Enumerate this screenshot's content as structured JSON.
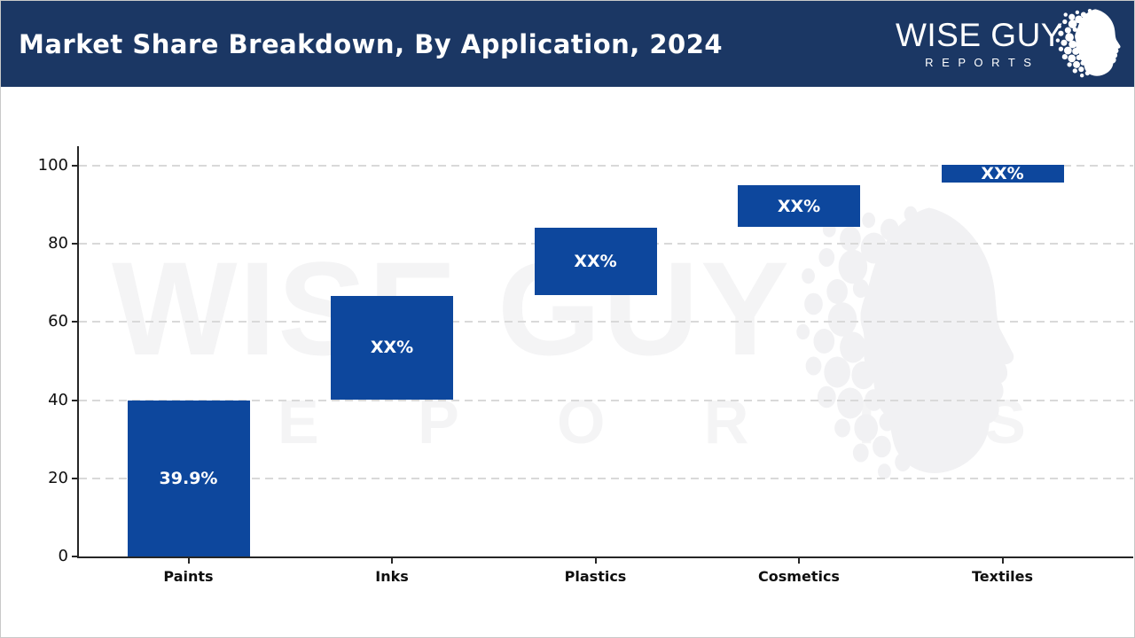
{
  "header": {
    "title": "Market Share Breakdown, By Application, 2024",
    "logo": {
      "brand": "WISE GUY",
      "sub": "R E P O R T S"
    }
  },
  "watermark": {
    "brand": "WISE GUY",
    "sub": "R E P O R T S"
  },
  "chart_data": {
    "type": "bar",
    "subtype": "waterfall",
    "title": "Market Share Breakdown, By Application, 2024",
    "categories": [
      "Paints",
      "Inks",
      "Plastics",
      "Cosmetics",
      "Textiles"
    ],
    "segments": [
      {
        "category": "Paints",
        "start": 0,
        "end": 39.9,
        "label": "39.9%"
      },
      {
        "category": "Inks",
        "start": 40.2,
        "end": 66.7,
        "label": "XX%"
      },
      {
        "category": "Plastics",
        "start": 66.9,
        "end": 84.2,
        "label": "XX%"
      },
      {
        "category": "Cosmetics",
        "start": 84.4,
        "end": 94.9,
        "label": "XX%"
      },
      {
        "category": "Textiles",
        "start": 95.6,
        "end": 100.3,
        "label": "XX%"
      }
    ],
    "xlabel": "",
    "ylabel": "",
    "ylim": [
      0,
      100
    ],
    "yticks": [
      0,
      20,
      40,
      60,
      80,
      100
    ],
    "grid": "horizontal-dashed",
    "legend": "none",
    "bar_color": "#0d479d",
    "bar_label_color": "#ffffff"
  },
  "colors": {
    "header_bg": "#1b3764",
    "bar": "#0d479d",
    "gridline": "#d9d9d9",
    "axis": "#262626",
    "watermark": "#f3f3f4"
  }
}
